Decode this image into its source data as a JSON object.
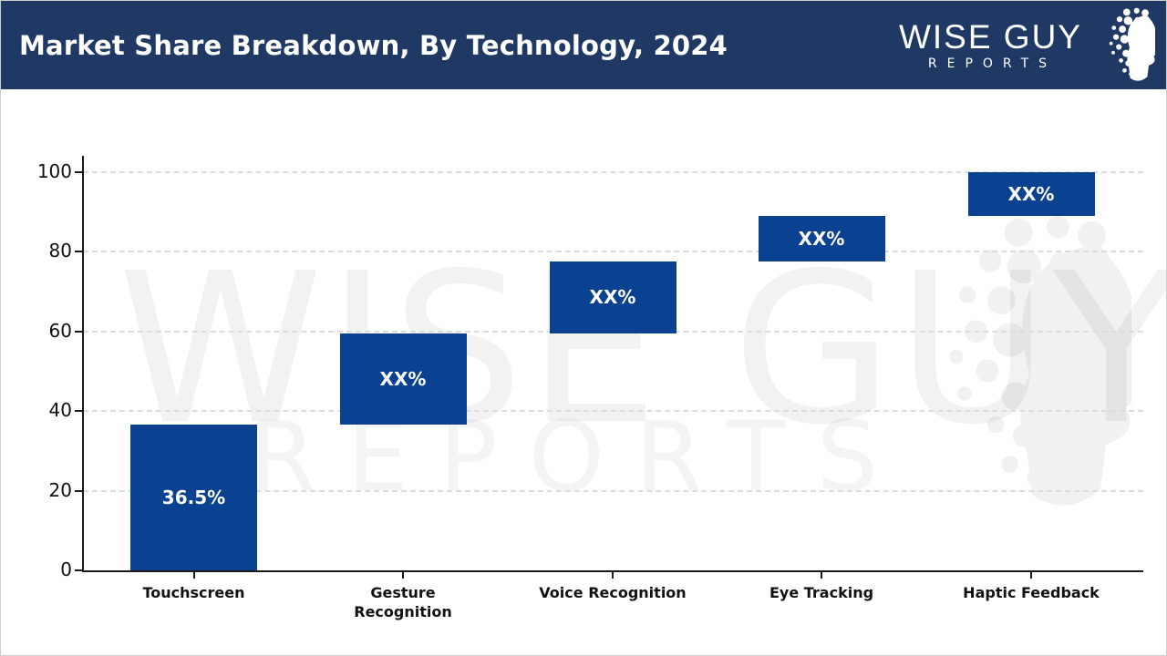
{
  "header": {
    "title": "Market Share Breakdown, By Technology, 2024",
    "logo": {
      "line1": "WISE GUY",
      "line2": "REPORTS"
    }
  },
  "watermark": {
    "line1": "WISE GUY",
    "line2": "REPORTS"
  },
  "colors": {
    "header_bg": "#1f3864",
    "bar": "#0b4191",
    "grid": "#dcdcdc",
    "axis": "#1a1a1a",
    "bar_label_text": "#ffffff"
  },
  "chart_data": {
    "type": "bar",
    "subtype": "waterfall-floating-bars",
    "title": "Market Share Breakdown, By Technology, 2024",
    "xlabel": "",
    "ylabel": "",
    "ylim": [
      0,
      105
    ],
    "yticks": [
      0,
      20,
      40,
      60,
      80,
      100
    ],
    "grid": "horizontal-dashed",
    "legend": "none",
    "categories": [
      "Touchscreen",
      "Gesture Recognition",
      "Voice Recognition",
      "Eye Tracking",
      "Haptic Feedback"
    ],
    "bars": [
      {
        "category": "Touchscreen",
        "tick_label": "Touchscreen",
        "start": 0,
        "end": 36.5,
        "label": "36.5%"
      },
      {
        "category": "Gesture Recognition",
        "tick_label": "Gesture\nRecognition",
        "start": 36.5,
        "end": 59.5,
        "label": "XX%"
      },
      {
        "category": "Voice Recognition",
        "tick_label": "Voice Recognition",
        "start": 59.5,
        "end": 77.5,
        "label": "XX%"
      },
      {
        "category": "Eye Tracking",
        "tick_label": "Eye Tracking",
        "start": 77.5,
        "end": 89,
        "label": "XX%"
      },
      {
        "category": "Haptic Feedback",
        "tick_label": "Haptic Feedback",
        "start": 89,
        "end": 100,
        "label": "XX%"
      }
    ]
  }
}
